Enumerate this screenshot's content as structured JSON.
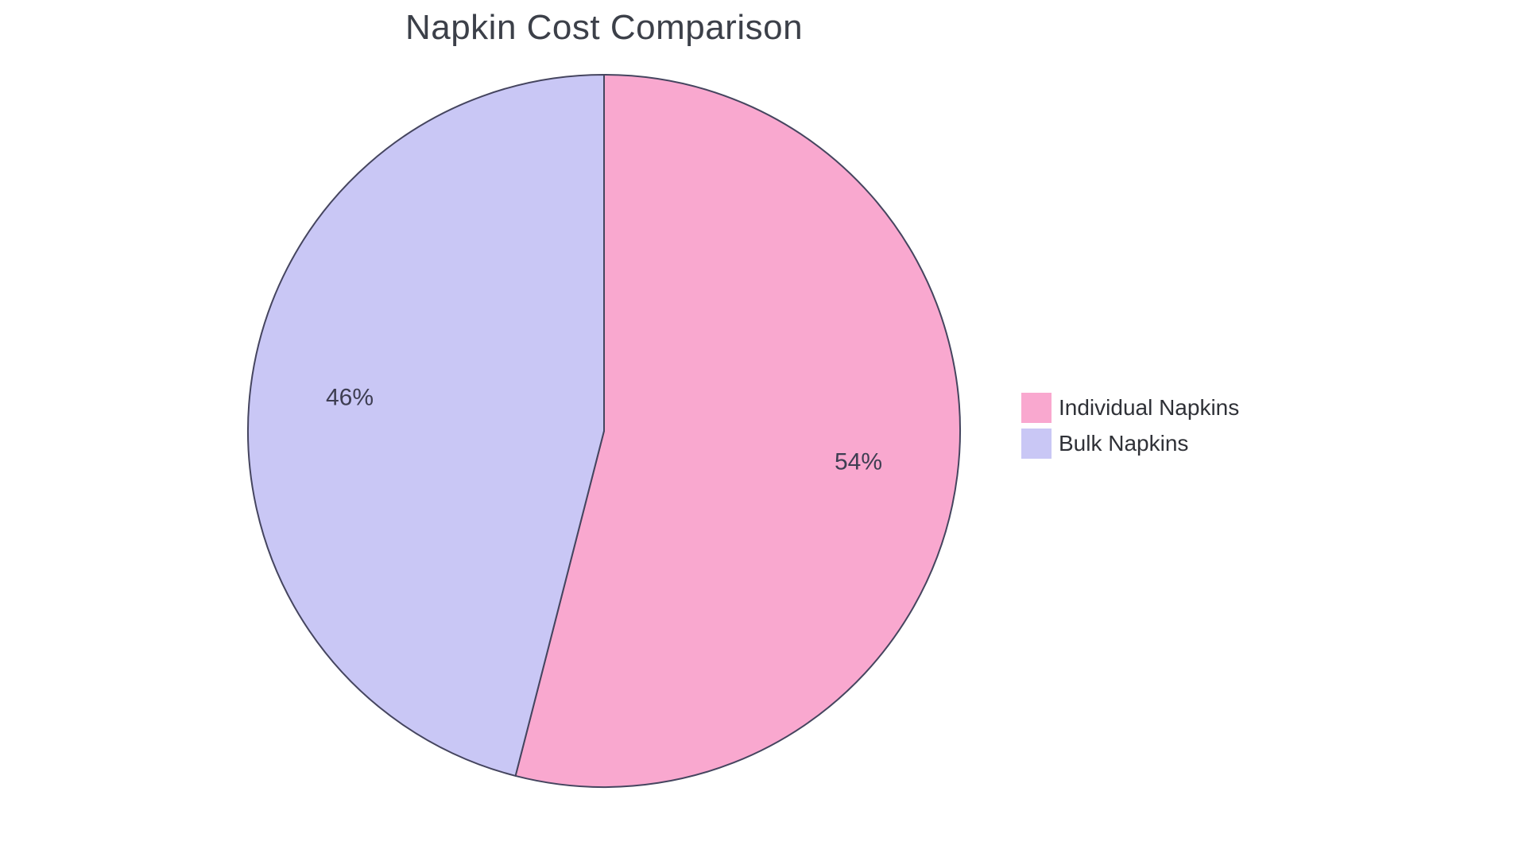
{
  "chart_data": {
    "type": "pie",
    "title": "Napkin Cost Comparison",
    "slices": [
      {
        "label": "Individual Napkins",
        "value": 54,
        "pct_label": "54%",
        "color": "#F9A8CF"
      },
      {
        "label": "Bulk Napkins",
        "value": 46,
        "pct_label": "46%",
        "color": "#C9C7F5"
      }
    ],
    "start_angle_deg": 0,
    "direction": "clockwise",
    "legend_position": "right",
    "outline_color": "#45455F",
    "label_color": "#3E3E52",
    "title_color": "#3C4049",
    "background": "#FFFFFF"
  }
}
